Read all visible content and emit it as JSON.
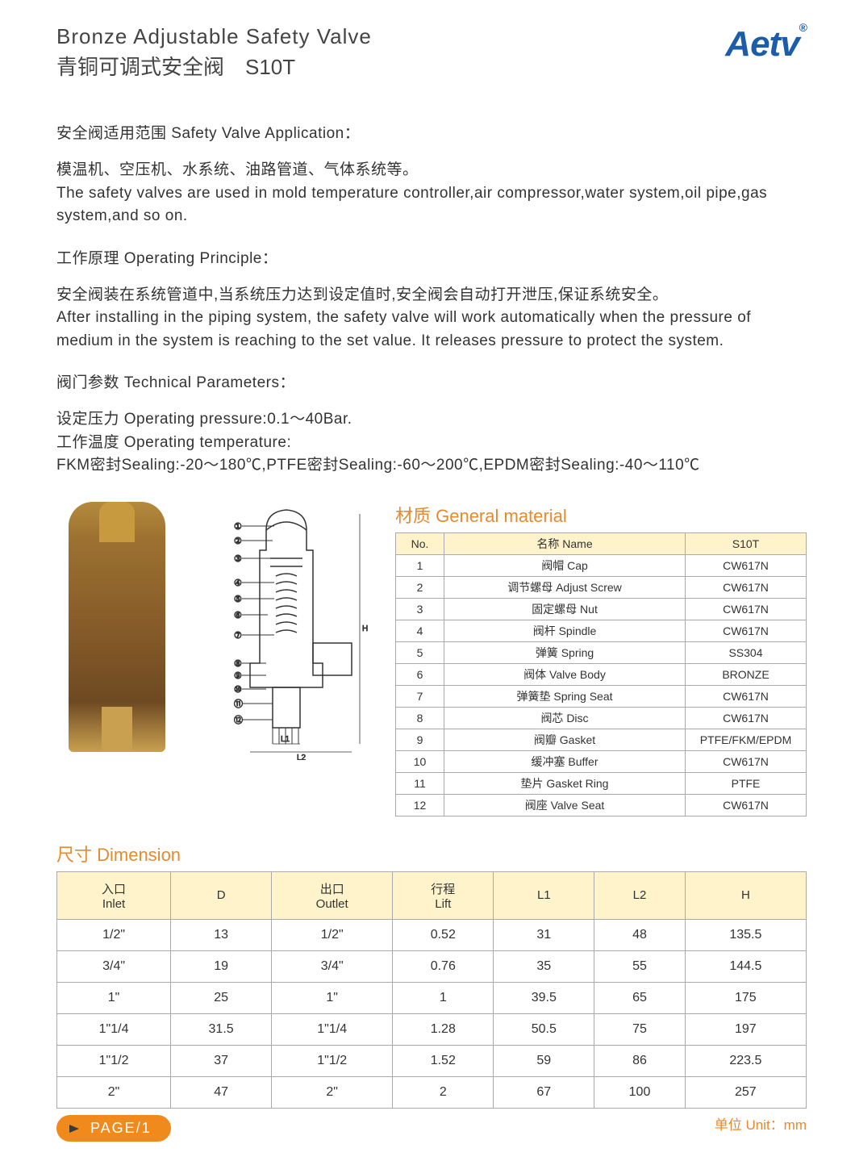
{
  "header": {
    "title_en": "Bronze Adjustable Safety Valve",
    "title_zh": "青铜可调式安全阀　S10T",
    "brand": "Aetv",
    "brand_mark": "®"
  },
  "sections": {
    "application_hdr": "安全阀适用范围 Safety Valve Application：",
    "application_zh": "模温机、空压机、水系统、油路管道、气体系统等。",
    "application_en": "The safety valves are used in mold temperature controller,air compressor,water system,oil pipe,gas system,and so on.",
    "principle_hdr": "工作原理 Operating Principle：",
    "principle_zh": "安全阀装在系统管道中,当系统压力达到设定值时,安全阀会自动打开泄压,保证系统安全。",
    "principle_en": "After installing in the piping system, the safety valve will work automatically when the pressure of medium in the system is reaching to the set value. It releases pressure to protect the system.",
    "params_hdr": "阀门参数 Technical Parameters：",
    "params_pressure": "设定压力 Operating pressure:0.1～40Bar.",
    "params_temp": "工作温度 Operating temperature:",
    "params_sealing": "FKM密封Sealing:-20～180℃,PTFE密封Sealing:-60～200℃,EPDM密封Sealing:-40～110℃"
  },
  "material": {
    "title": "材质 General material",
    "headers": {
      "no": "No.",
      "name": "名称 Name",
      "model": "S10T"
    },
    "rows": [
      {
        "no": "1",
        "name": "阀帽 Cap",
        "model": "CW617N"
      },
      {
        "no": "2",
        "name": "调节螺母 Adjust Screw",
        "model": "CW617N"
      },
      {
        "no": "3",
        "name": "固定螺母 Nut",
        "model": "CW617N"
      },
      {
        "no": "4",
        "name": "阀杆 Spindle",
        "model": "CW617N"
      },
      {
        "no": "5",
        "name": "弹簧 Spring",
        "model": "SS304"
      },
      {
        "no": "6",
        "name": "阀体 Valve Body",
        "model": "BRONZE"
      },
      {
        "no": "7",
        "name": "弹簧垫 Spring Seat",
        "model": "CW617N"
      },
      {
        "no": "8",
        "name": "阀芯 Disc",
        "model": "CW617N"
      },
      {
        "no": "9",
        "name": "阀瓣 Gasket",
        "model": "PTFE/FKM/EPDM"
      },
      {
        "no": "10",
        "name": "缓冲塞 Buffer",
        "model": "CW617N"
      },
      {
        "no": "11",
        "name": "垫片 Gasket Ring",
        "model": "PTFE"
      },
      {
        "no": "12",
        "name": "阀座 Valve Seat",
        "model": "CW617N"
      }
    ]
  },
  "dimension": {
    "title": "尺寸 Dimension",
    "headers": [
      {
        "zh": "入口",
        "en": "Inlet"
      },
      {
        "zh": "",
        "en": "D"
      },
      {
        "zh": "出口",
        "en": "Outlet"
      },
      {
        "zh": "行程",
        "en": "Lift"
      },
      {
        "zh": "",
        "en": "L1"
      },
      {
        "zh": "",
        "en": "L2"
      },
      {
        "zh": "",
        "en": "H"
      }
    ],
    "rows": [
      [
        "1/2\"",
        "13",
        "1/2\"",
        "0.52",
        "31",
        "48",
        "135.5"
      ],
      [
        "3/4\"",
        "19",
        "3/4\"",
        "0.76",
        "35",
        "55",
        "144.5"
      ],
      [
        "1\"",
        "25",
        "1\"",
        "1",
        "39.5",
        "65",
        "175"
      ],
      [
        "1\"1/4",
        "31.5",
        "1\"1/4",
        "1.28",
        "50.5",
        "75",
        "197"
      ],
      [
        "1\"1/2",
        "37",
        "1\"1/2",
        "1.52",
        "59",
        "86",
        "223.5"
      ],
      [
        "2\"",
        "47",
        "2\"",
        "2",
        "67",
        "100",
        "257"
      ]
    ],
    "unit_note": "单位 Unit：mm"
  },
  "page_badge": "PAGE/1",
  "diagram": {
    "callouts": [
      "①",
      "②",
      "③",
      "④",
      "⑤",
      "⑥",
      "⑦",
      "⑧",
      "⑨",
      "⑩",
      "⑪",
      "⑫"
    ],
    "dim_labels": {
      "h": "H",
      "l1": "L1",
      "l2": "L2"
    }
  },
  "colors": {
    "orange": "#e68a2e",
    "badge": "#f08a1d",
    "brand": "#1b5da8",
    "header_bg": "#fff3cc",
    "border": "#aaaaaa",
    "text": "#333333"
  }
}
